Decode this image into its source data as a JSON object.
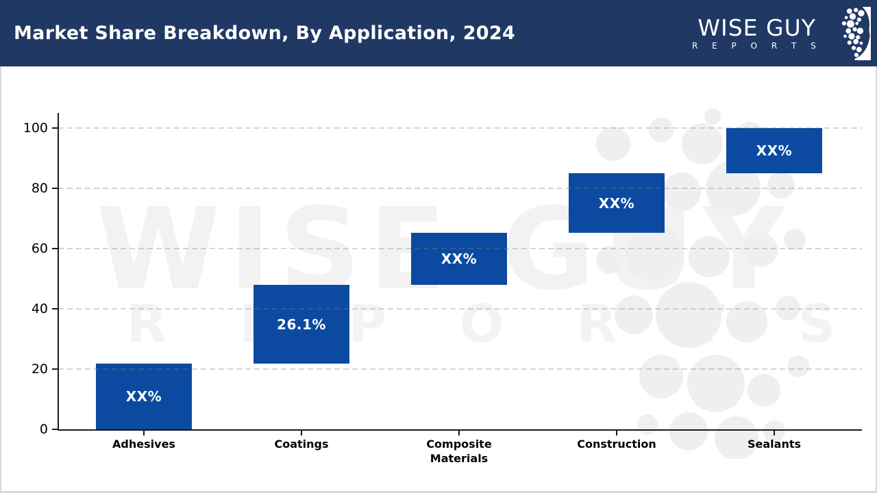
{
  "header": {
    "title": "Market Share Breakdown, By Application, 2024",
    "bg_color": "#203864",
    "logo": {
      "line1": "WISE GUY",
      "line2": "R E P O R T S"
    }
  },
  "watermark": {
    "line1": "WISE GUY",
    "line2": "R E P O R T S"
  },
  "chart_data": {
    "type": "bar",
    "variant": "floating-segment-waterfall",
    "title": "Market Share Breakdown, By Application, 2024",
    "xlabel": "",
    "ylabel": "",
    "ylim": [
      0,
      100
    ],
    "yticks": [
      0,
      20,
      40,
      60,
      80,
      100
    ],
    "grid": "horizontal-dashed",
    "bar_color": "#0b4aa0",
    "categories": [
      "Adhesives",
      "Coatings",
      "Composite Materials",
      "Construction",
      "Sealants"
    ],
    "segments": [
      {
        "category": "Adhesives",
        "start": 0,
        "end": 21.8,
        "value": 21.8,
        "label": "XX%"
      },
      {
        "category": "Coatings",
        "start": 21.8,
        "end": 47.9,
        "value": 26.1,
        "label": "26.1%"
      },
      {
        "category": "Composite Materials",
        "start": 47.9,
        "end": 65.2,
        "value": 17.3,
        "label": "XX%"
      },
      {
        "category": "Construction",
        "start": 65.2,
        "end": 85.0,
        "value": 19.8,
        "label": "XX%"
      },
      {
        "category": "Sealants",
        "start": 85.0,
        "end": 100,
        "value": 15.0,
        "label": "XX%"
      }
    ]
  }
}
